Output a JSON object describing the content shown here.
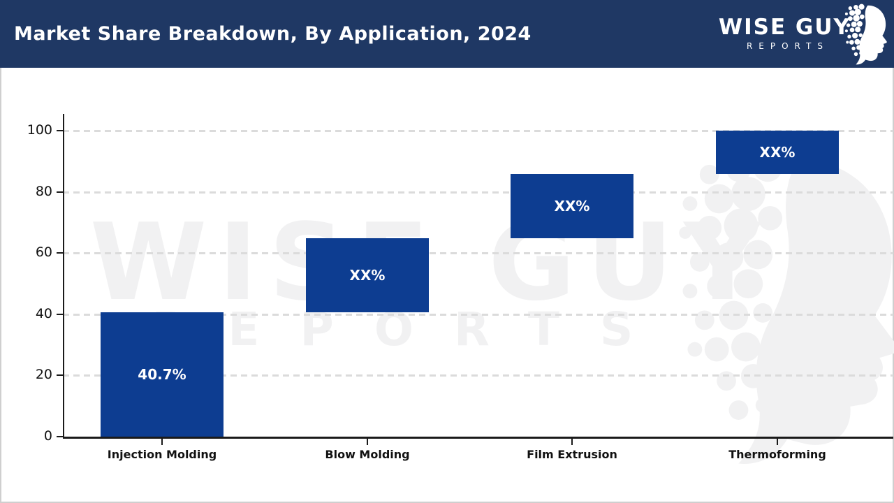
{
  "header": {
    "title": "Market Share Breakdown, By Application, 2024",
    "logo": {
      "line1": "WISE GUY",
      "line2": "REPORTS"
    }
  },
  "watermark": {
    "line1": "WISE GUY",
    "line2": "REPORTS"
  },
  "chart_data": {
    "type": "bar",
    "subtype": "waterfall",
    "title": "Market Share Breakdown, By Application, 2024",
    "categories": [
      "Injection Molding",
      "Blow Molding",
      "Film Extrusion",
      "Thermoforming"
    ],
    "segments": [
      {
        "category": "Injection Molding",
        "start": 0,
        "end": 40.7,
        "label": "40.7%"
      },
      {
        "category": "Blow Molding",
        "start": 40.7,
        "end": 64.8,
        "label": "XX%"
      },
      {
        "category": "Film Extrusion",
        "start": 64.8,
        "end": 85.8,
        "label": "XX%"
      },
      {
        "category": "Thermoforming",
        "start": 85.8,
        "end": 100,
        "label": "XX%"
      }
    ],
    "xlabel": "",
    "ylabel": "",
    "ylim": [
      0,
      100
    ],
    "yticks": [
      0,
      20,
      40,
      60,
      80,
      100
    ],
    "grid": "horizontal-dashed",
    "legend": "none",
    "bar_color": "#0d3d91",
    "bar_label_color": "#ffffff",
    "header_color": "#1f3864"
  }
}
